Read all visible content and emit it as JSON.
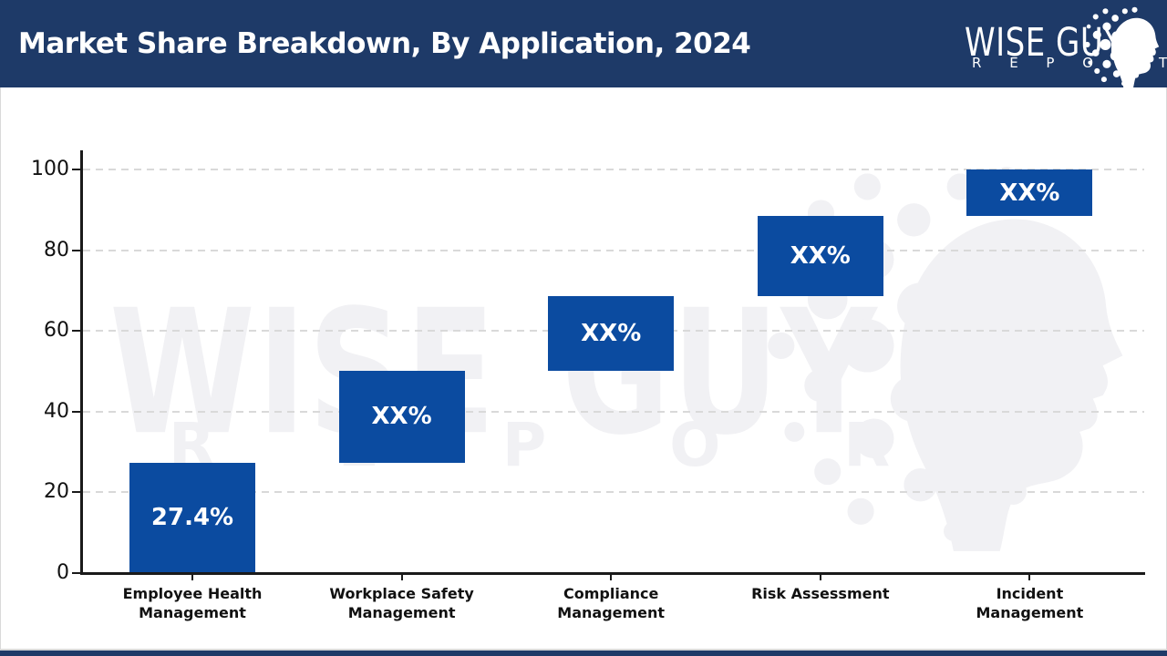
{
  "header": {
    "logo": {
      "line1": "WISE GUY",
      "line2": "R E P O R T S"
    }
  },
  "watermark": {
    "line1": "WISE GUY",
    "line2": "R E P O R T S"
  },
  "chart_data": {
    "type": "bar",
    "subtype": "waterfall",
    "title": "Market Share Breakdown, By Application, 2024",
    "xlabel": "",
    "ylabel": "",
    "ylim": [
      0,
      106
    ],
    "yticks": [
      0,
      20,
      40,
      60,
      80,
      100
    ],
    "grid": "dashed-horizontal",
    "legend": "none",
    "bar_color": "#0b4ba0",
    "bar_label_color": "#ffffff",
    "categories": [
      [
        "Employee Health",
        "Management"
      ],
      [
        "Workplace Safety",
        "Management"
      ],
      [
        "Compliance",
        "Management"
      ],
      [
        "Risk Assessment"
      ],
      [
        "Incident",
        "Management"
      ]
    ],
    "bars": [
      {
        "label": "27.4%",
        "start": 0,
        "end": 27.4
      },
      {
        "label": "XX%",
        "start": 27.4,
        "end": 50.2
      },
      {
        "label": "XX%",
        "start": 50.2,
        "end": 68.6
      },
      {
        "label": "XX%",
        "start": 68.6,
        "end": 88.4
      },
      {
        "label": "XX%",
        "start": 88.4,
        "end": 100
      }
    ]
  }
}
